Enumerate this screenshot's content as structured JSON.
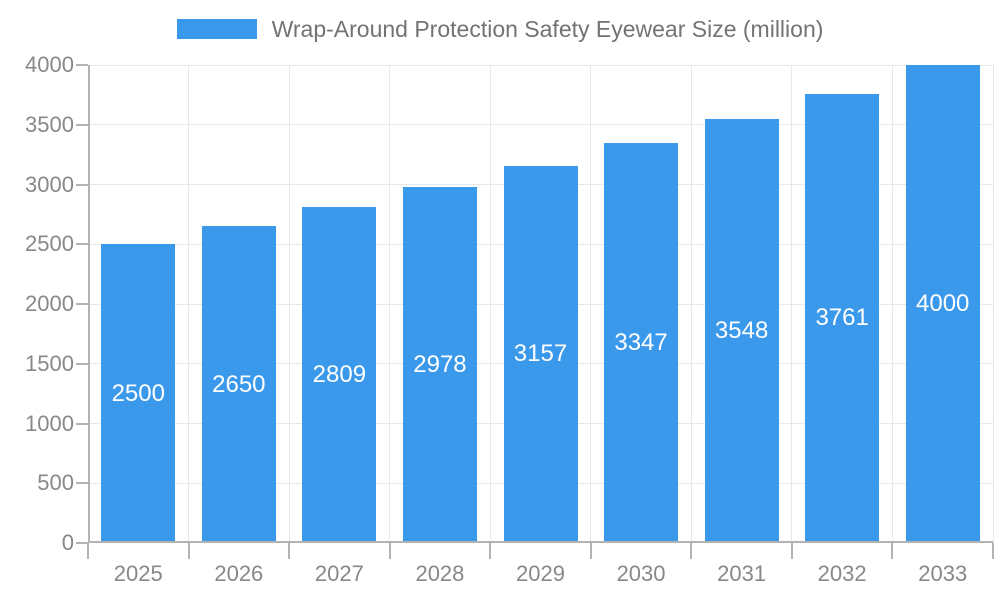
{
  "legend": {
    "label": "Wrap-Around Protection Safety Eyewear Size (million)"
  },
  "chart_data": {
    "type": "bar",
    "title": "Wrap-Around Protection Safety Eyewear Size (million)",
    "series_name": "Wrap-Around Protection Safety Eyewear Size (million)",
    "categories": [
      "2025",
      "2026",
      "2027",
      "2028",
      "2029",
      "2030",
      "2031",
      "2032",
      "2033"
    ],
    "values": [
      2500,
      2650,
      2809,
      2978,
      3157,
      3347,
      3548,
      3761,
      4000
    ],
    "xlabel": "",
    "ylabel": "",
    "ylim": [
      0,
      4000
    ],
    "yticks": [
      0,
      500,
      1000,
      1500,
      2000,
      2500,
      3000,
      3500,
      4000
    ],
    "grid": true,
    "legend_position": "top",
    "bar_label_position": "inside-center"
  },
  "colors": {
    "bar": "#3B99EC",
    "grid_line": "#E8E8E8",
    "axis_line": "#B3B3B3",
    "tick_label": "#888888",
    "legend_text": "#737373",
    "bar_label": "#FFFFFF",
    "background": "#FFFFFF"
  }
}
